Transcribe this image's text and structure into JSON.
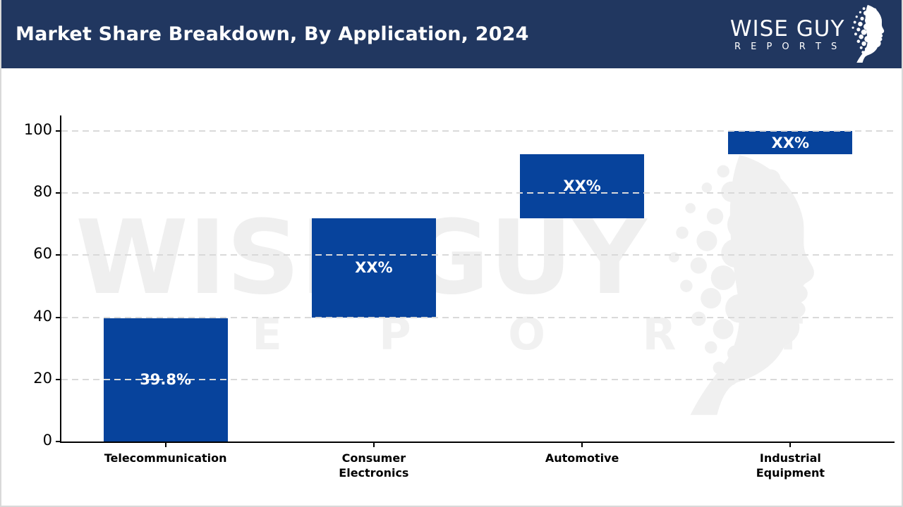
{
  "header": {
    "title": "Market Share Breakdown, By Application, 2024",
    "logo": {
      "line1": "WISE GUY",
      "line2": "R E P O R T S"
    }
  },
  "watermark": {
    "line1": "WISE GUY",
    "line2": "R E P O R T S"
  },
  "chart_data": {
    "type": "bar",
    "variant": "waterfall",
    "title": "Market Share Breakdown, By Application, 2024",
    "categories": [
      "Telecommunication",
      "Consumer Electronics",
      "Automotive",
      "Industrial Equipment"
    ],
    "segments": [
      {
        "category": "Telecommunication",
        "label_lines": [
          "Telecommunication"
        ],
        "start": 0,
        "end": 39.8,
        "value_est": 39.8,
        "bar_label": "39.8%"
      },
      {
        "category": "Consumer Electronics",
        "label_lines": [
          "Consumer",
          "Electronics"
        ],
        "start": 39.8,
        "end": 72.0,
        "value_est": 32.2,
        "bar_label": "XX%"
      },
      {
        "category": "Automotive",
        "label_lines": [
          "Automotive"
        ],
        "start": 72.0,
        "end": 92.5,
        "value_est": 20.5,
        "bar_label": "XX%"
      },
      {
        "category": "Industrial Equipment",
        "label_lines": [
          "Industrial",
          "Equipment"
        ],
        "start": 92.5,
        "end": 100,
        "value_est": 7.5,
        "bar_label": "XX%"
      }
    ],
    "y_ticks": [
      0,
      20,
      40,
      60,
      80,
      100
    ],
    "ylim": [
      0,
      105
    ],
    "grid": {
      "horizontal": true,
      "style": "dashed",
      "color": "#d9d9d9"
    },
    "legend": "none",
    "xlabel": "",
    "ylabel": "",
    "bar_color": "#07439c",
    "bar_label_color": "#ffffff"
  },
  "colors": {
    "header_bg": "#213760",
    "bar": "#07439c",
    "grid": "#d9d9d9",
    "axis": "#000000",
    "watermark": "#efefef",
    "frame_border": "#d9d9d9"
  }
}
